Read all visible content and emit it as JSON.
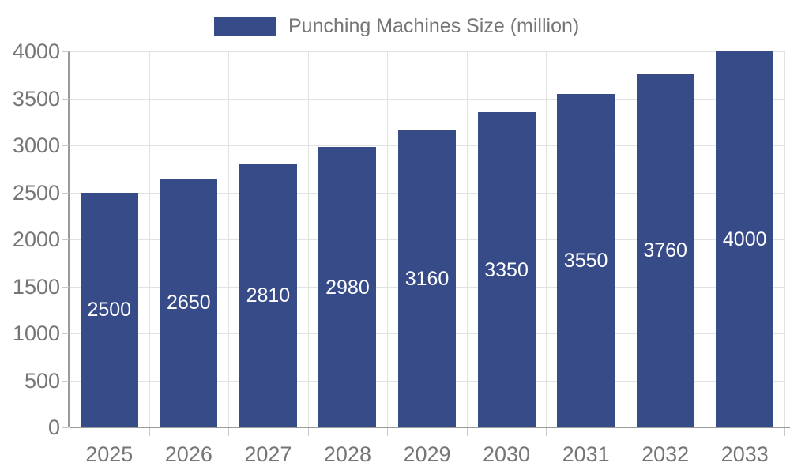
{
  "legend": {
    "position": "top-center",
    "items": [
      {
        "label": "Punching Machines Size (million)",
        "color": "#374B88"
      }
    ]
  },
  "chart_data": {
    "type": "bar",
    "title": "",
    "categories": [
      "2025",
      "2026",
      "2027",
      "2028",
      "2029",
      "2030",
      "2031",
      "2032",
      "2033"
    ],
    "series": [
      {
        "name": "Punching Machines Size (million)",
        "values": [
          2500,
          2650,
          2810,
          2980,
          3160,
          3350,
          3550,
          3760,
          4000
        ]
      }
    ],
    "value_labels_position": "inside-middle",
    "xlabel": "",
    "ylabel": "",
    "ylim": [
      0,
      4000
    ],
    "yticks": [
      0,
      500,
      1000,
      1500,
      2000,
      2500,
      3000,
      3500,
      4000
    ],
    "grid": "horizontal-and-vertical",
    "legend_position": "top-center",
    "colors": {
      "bar": "#374B88",
      "axis_label": "#757575",
      "legend_text": "#757575",
      "value_label": "#ffffff",
      "gridline": "#e2e2e2",
      "axis_line": "#9a9a9a",
      "tick": "#c9c9c9",
      "background": "#ffffff"
    }
  }
}
